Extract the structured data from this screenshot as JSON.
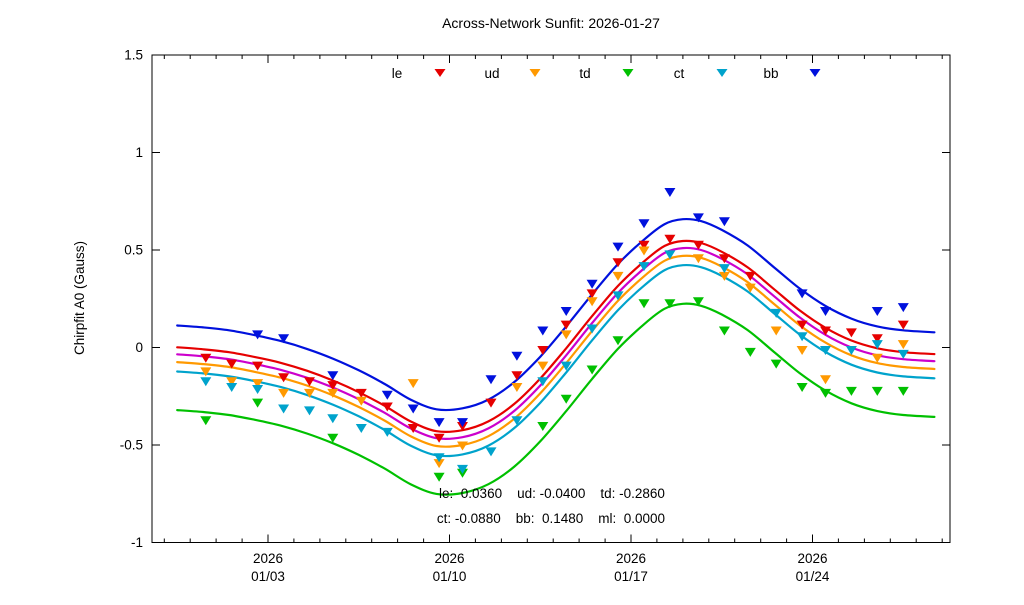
{
  "title": "Across-Network Sunfit: 2026-01-27",
  "y_axis": {
    "label": "Chirpfit A0 (Gauss)",
    "range": [
      -1,
      1.5
    ],
    "tick_labels": [
      "1.5",
      "1",
      "0.5",
      "0",
      "-0.5",
      "-1"
    ],
    "tick_values": [
      1.5,
      1,
      0.5,
      0,
      -0.5,
      -1
    ]
  },
  "x_axis": {
    "range_days": [
      -1.47,
      29.3
    ],
    "major_ticks": [
      {
        "day": 3,
        "line1": "2026",
        "line2": "01/03"
      },
      {
        "day": 10,
        "line1": "2026",
        "line2": "01/10"
      },
      {
        "day": 17,
        "line1": "2026",
        "line2": "01/17"
      },
      {
        "day": 24,
        "line1": "2026",
        "line2": "01/24"
      }
    ],
    "minor_tick_every_days": 1
  },
  "legend": {
    "items": [
      {
        "label": "le",
        "series": "le"
      },
      {
        "label": "ud",
        "series": "ud"
      },
      {
        "label": "td",
        "series": "td"
      },
      {
        "label": "ct",
        "series": "ct"
      },
      {
        "label": "bb",
        "series": "bb"
      }
    ]
  },
  "annotations": {
    "line1": "le:  0.0360    ud: -0.0400    td: -0.2860",
    "line2": "ct: -0.0880    bb:  0.1480    ml:  0.0000"
  },
  "chart_data": {
    "type": "line+scatter",
    "title": "Across-Network Sunfit: 2026-01-27",
    "ylabel": "Chirpfit A0 (Gauss)",
    "ylim": [
      -1,
      1.5
    ],
    "x_unit": "day of January 2026 (0 = Dec 31 2025); axis labeled 01/03, 01/10, 01/17, 01/24",
    "grid": false,
    "legend_position": "top-inside",
    "marker": "filled-triangle-down",
    "colors": {
      "le": "#e60000",
      "ud": "#ff9900",
      "td": "#00c000",
      "ct": "#00a3cc",
      "bb": "#0011dd",
      "ml": "#cc00cc"
    },
    "fit_offsets_gauss": {
      "le": 0.036,
      "ud": -0.04,
      "td": -0.286,
      "ct": -0.088,
      "bb": 0.148,
      "ml": 0.0
    },
    "baseline_fit_ml": {
      "x": [
        -0.5,
        0.5,
        1.5,
        2.5,
        3.5,
        4.5,
        5.5,
        6.5,
        7.5,
        8.5,
        9.5,
        10.5,
        11.5,
        12.5,
        13.5,
        14.5,
        15.5,
        16.5,
        17.5,
        18.3,
        19.0,
        19.7,
        20.5,
        21.5,
        22.5,
        23.5,
        24.5,
        25.5,
        26.5,
        27.5,
        28.7
      ],
      "y": [
        -0.035,
        -0.045,
        -0.06,
        -0.085,
        -0.115,
        -0.155,
        -0.205,
        -0.265,
        -0.335,
        -0.415,
        -0.465,
        -0.46,
        -0.415,
        -0.325,
        -0.195,
        -0.04,
        0.125,
        0.28,
        0.405,
        0.485,
        0.51,
        0.5,
        0.455,
        0.375,
        0.265,
        0.155,
        0.065,
        0.0,
        -0.04,
        -0.06,
        -0.07
      ]
    },
    "curve_order": [
      "td",
      "ct",
      "ud",
      "ml",
      "le",
      "bb"
    ],
    "marker_series": [
      "le",
      "ud",
      "td",
      "ct",
      "bb"
    ],
    "scatter_days": [
      0.6,
      1.6,
      2.6,
      3.6,
      4.6,
      5.5,
      6.6,
      7.6,
      8.6,
      9.6,
      10.5,
      11.6,
      12.6,
      13.6,
      14.5,
      15.5,
      16.5,
      17.5,
      18.5,
      19.6,
      20.6,
      21.6,
      22.6,
      23.6,
      24.5,
      25.5,
      26.5,
      27.5
    ],
    "scatter": {
      "le": [
        -0.05,
        -0.08,
        -0.09,
        -0.15,
        -0.17,
        -0.19,
        -0.23,
        -0.3,
        -0.41,
        -0.46,
        -0.4,
        -0.28,
        -0.14,
        -0.01,
        0.12,
        0.28,
        0.44,
        0.53,
        0.56,
        0.53,
        0.46,
        0.37,
        null,
        0.12,
        0.09,
        0.08,
        0.05,
        0.12
      ],
      "ud": [
        -0.12,
        -0.17,
        -0.18,
        -0.23,
        -0.23,
        -0.23,
        -0.27,
        null,
        -0.18,
        -0.59,
        -0.5,
        null,
        -0.2,
        -0.09,
        0.07,
        0.24,
        0.37,
        0.5,
        null,
        0.46,
        0.37,
        0.31,
        0.09,
        -0.01,
        -0.16,
        null,
        -0.05,
        0.02
      ],
      "td": [
        -0.37,
        null,
        -0.28,
        null,
        null,
        -0.46,
        null,
        null,
        null,
        -0.66,
        -0.64,
        null,
        null,
        -0.4,
        -0.26,
        -0.11,
        0.04,
        0.23,
        0.23,
        0.24,
        0.09,
        -0.02,
        -0.08,
        -0.2,
        -0.23,
        -0.22,
        -0.22,
        -0.22
      ],
      "ct": [
        -0.17,
        -0.2,
        -0.21,
        -0.31,
        -0.32,
        -0.36,
        -0.41,
        -0.43,
        null,
        -0.56,
        -0.62,
        -0.53,
        -0.37,
        -0.17,
        -0.09,
        0.1,
        0.27,
        0.42,
        0.48,
        null,
        0.41,
        null,
        0.18,
        0.06,
        -0.01,
        -0.01,
        0.02,
        -0.03
      ],
      "bb": [
        null,
        null,
        0.07,
        0.05,
        null,
        -0.14,
        null,
        -0.24,
        -0.31,
        -0.38,
        -0.38,
        -0.16,
        -0.04,
        0.09,
        0.19,
        0.33,
        0.52,
        0.64,
        0.8,
        0.67,
        0.65,
        null,
        null,
        0.28,
        0.19,
        null,
        0.19,
        0.21
      ]
    },
    "fit_values_annotation": {
      "le": 0.036,
      "ud": -0.04,
      "td": -0.286,
      "ct": -0.088,
      "bb": 0.148,
      "ml": 0.0
    }
  }
}
